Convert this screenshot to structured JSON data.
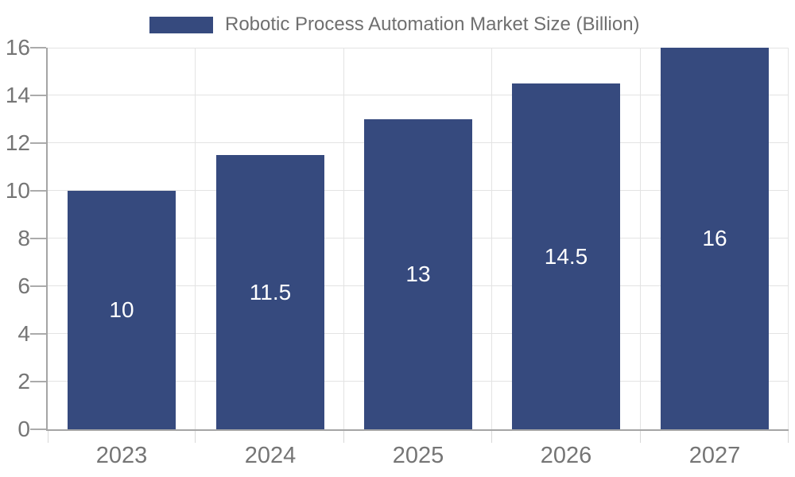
{
  "legend": {
    "label": "Robotic Process Automation Market Size (Billion)"
  },
  "chart_data": {
    "type": "bar",
    "title": "Robotic Process Automation Market Size (Billion)",
    "categories": [
      "2023",
      "2024",
      "2025",
      "2026",
      "2027"
    ],
    "values": [
      10,
      11.5,
      13,
      14.5,
      16
    ],
    "data_labels": [
      "10",
      "11.5",
      "13",
      "14.5",
      "16"
    ],
    "xlabel": "",
    "ylabel": "",
    "ylim": [
      0,
      16
    ],
    "ytick_step": 2,
    "yticks": [
      "0",
      "2",
      "4",
      "6",
      "8",
      "10",
      "12",
      "14",
      "16"
    ],
    "grid": true,
    "legend_position": "top",
    "bar_color": "#364a7e",
    "bar_label_color": "#ffffff"
  }
}
